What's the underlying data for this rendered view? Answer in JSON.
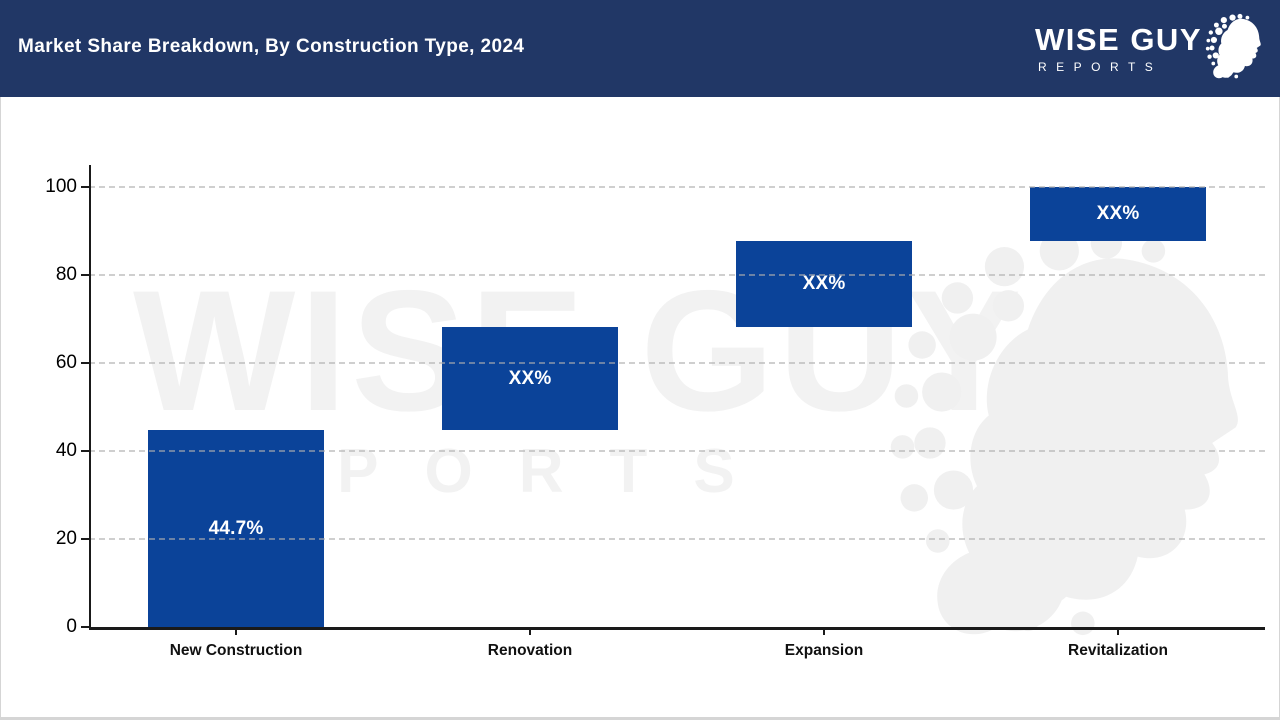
{
  "header": {
    "title": "Market Share Breakdown, By Construction Type, 2024",
    "logo": {
      "line1": "WISE GUY",
      "line2": "REPORTS",
      "head_icon": "dotted-head-profile-icon"
    }
  },
  "watermark": {
    "line1": "WISE GUY",
    "line2": "REPORTS",
    "head_icon": "dotted-head-profile-icon"
  },
  "chart_data": {
    "type": "bar",
    "subtype": "waterfall",
    "title": "Market Share Breakdown, By Construction Type, 2024",
    "xlabel": "",
    "ylabel": "",
    "ylim": [
      0,
      100
    ],
    "yticks": [
      0,
      20,
      40,
      60,
      80,
      100
    ],
    "grid": "horizontal-dashed",
    "legend": "none",
    "bar_color": "#0b4399",
    "label_color": "#ffffff",
    "categories": [
      "New Construction",
      "Renovation",
      "Expansion",
      "Revitalization"
    ],
    "segments": [
      {
        "category": "New Construction",
        "start": 0,
        "end": 44.7,
        "label": "44.7%"
      },
      {
        "category": "Renovation",
        "start": 44.7,
        "end": 68.1,
        "label": "XX%"
      },
      {
        "category": "Expansion",
        "start": 68.1,
        "end": 87.6,
        "label": "XX%"
      },
      {
        "category": "Revitalization",
        "start": 87.6,
        "end": 100,
        "label": "XX%"
      }
    ]
  },
  "colors": {
    "header_bg": "#213766",
    "bar": "#0b4399",
    "watermark": "#f2f2f2",
    "gridline": "#c9c9c9",
    "axis": "#1a1a1a",
    "page_border": "#d5d5d5"
  }
}
